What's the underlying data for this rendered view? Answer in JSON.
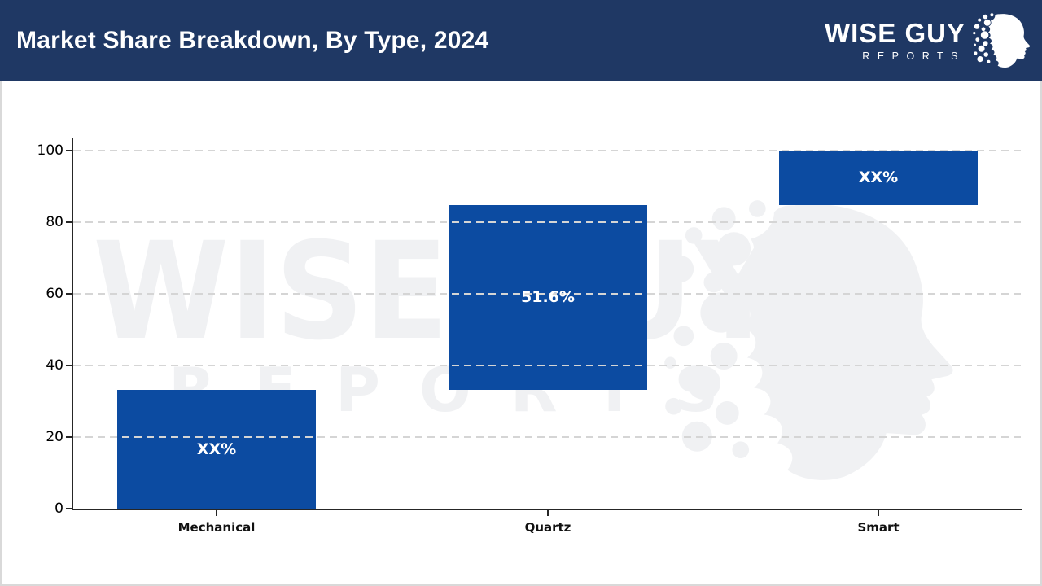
{
  "header": {
    "title": "Market Share Breakdown, By Type, 2024",
    "logo": {
      "line1": "WISE GUY",
      "line2": "REPORTS"
    }
  },
  "watermark": {
    "line1": "WISE GUY",
    "line2": "REPORTS"
  },
  "colors": {
    "header_navy": "#1F3864",
    "bar_blue": "#0C4BA1",
    "grid_gray": "#d5d5d5",
    "axis_black": "#262626",
    "watermark_gray": "#f0f1f3",
    "frame_gray": "#d9d9d9",
    "text_white": "#ffffff"
  },
  "chart_data": {
    "type": "bar",
    "subtype": "waterfall-floating-bars",
    "title": "Market Share Breakdown, By Type, 2024",
    "categories": [
      "Mechanical",
      "Quartz",
      "Smart"
    ],
    "segments": [
      {
        "category": "Mechanical",
        "start": 0,
        "end": 33.2,
        "value": 33.2,
        "label": "XX%"
      },
      {
        "category": "Quartz",
        "start": 33.2,
        "end": 84.8,
        "value": 51.6,
        "label": "51.6%"
      },
      {
        "category": "Smart",
        "start": 84.8,
        "end": 100,
        "value": 15.2,
        "label": "XX%"
      }
    ],
    "y_ticks": [
      0,
      20,
      40,
      60,
      80,
      100
    ],
    "ylim": [
      0,
      103.4
    ],
    "xlabel": "",
    "ylabel": "",
    "grid": "dashed-horizontal-over-bars",
    "legend": null,
    "bar_color": "#0C4BA1",
    "bar_label_color": "#ffffff"
  }
}
